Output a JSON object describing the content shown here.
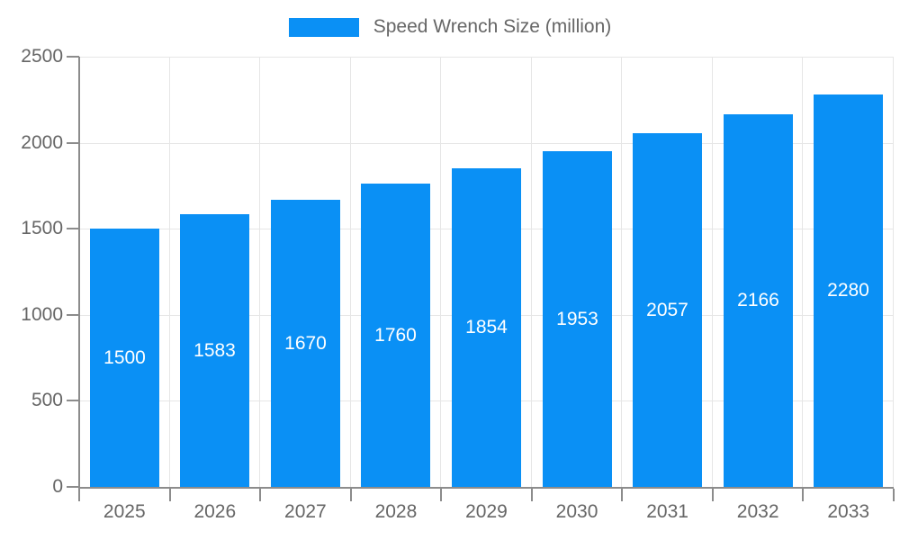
{
  "legend": {
    "label": "Speed Wrench Size (million)"
  },
  "colors": {
    "bar": "#0a90f5",
    "axis": "#8c8c8c",
    "grid": "#e6e6e6",
    "tick_label": "#666666",
    "value_label": "#ffffff",
    "background": "#ffffff"
  },
  "chart_data": {
    "type": "bar",
    "title": "",
    "legend_label": "Speed Wrench Size (million)",
    "legend_position": "top-center",
    "categories": [
      "2025",
      "2026",
      "2027",
      "2028",
      "2029",
      "2030",
      "2031",
      "2032",
      "2033"
    ],
    "values": [
      1500,
      1583,
      1670,
      1760,
      1854,
      1953,
      2057,
      2166,
      2280
    ],
    "bar_labels": [
      "1500",
      "1583",
      "1670",
      "1760",
      "1854",
      "1953",
      "2057",
      "2166",
      "2280"
    ],
    "bar_label_position": "inside-middle",
    "xlabel": "",
    "ylabel": "",
    "ylim": [
      0,
      2500
    ],
    "yticks": [
      0,
      500,
      1000,
      1500,
      2000,
      2500
    ],
    "grid": true
  }
}
